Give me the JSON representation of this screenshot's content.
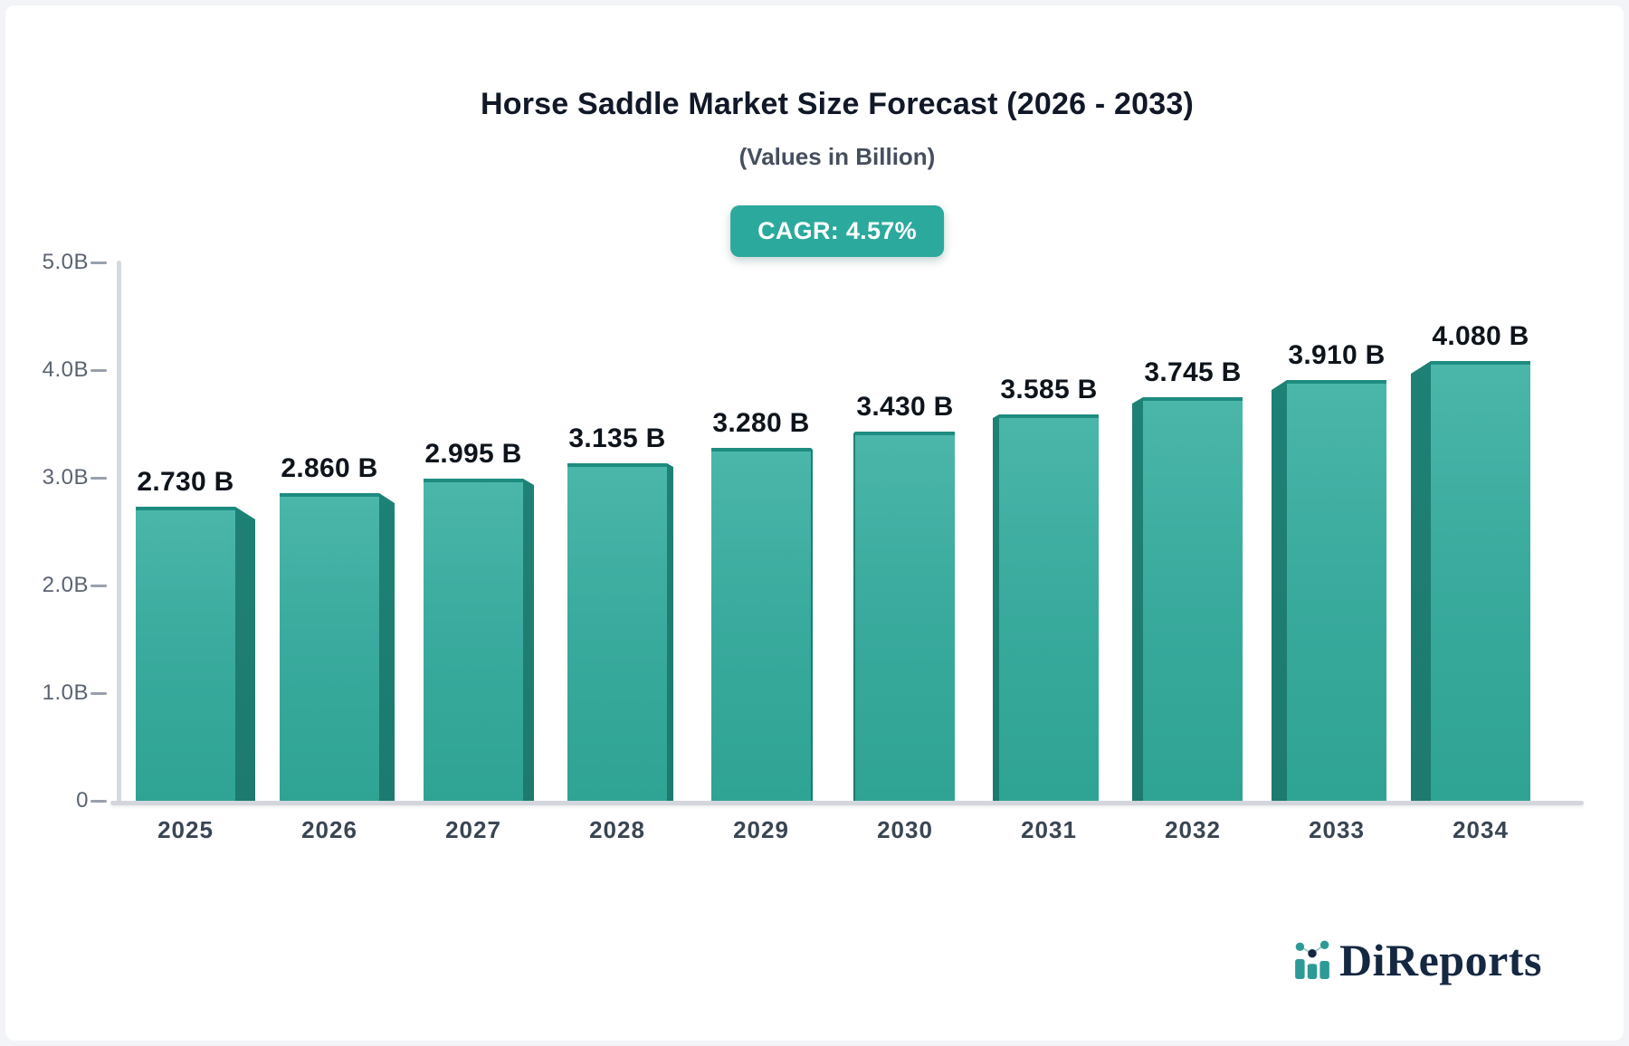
{
  "title": "Horse Saddle Market Size Forecast (2026 - 2033)",
  "subtitle": "(Values in Billion)",
  "cagr_badge": "CAGR: 4.57%",
  "logo": {
    "text": "DiReports"
  },
  "chart_data": {
    "type": "bar",
    "title": "Horse Saddle Market Size Forecast (2026 - 2033)",
    "subtitle": "(Values in Billion)",
    "categories": [
      "2025",
      "2026",
      "2027",
      "2028",
      "2029",
      "2030",
      "2031",
      "2032",
      "2033",
      "2034"
    ],
    "values": [
      2.73,
      2.86,
      2.995,
      3.135,
      3.28,
      3.43,
      3.585,
      3.745,
      3.91,
      4.08
    ],
    "value_labels": [
      "2.730 B",
      "2.860 B",
      "2.995 B",
      "3.135 B",
      "3.280 B",
      "3.430 B",
      "3.585 B",
      "3.745 B",
      "3.910 B",
      "4.080 B"
    ],
    "y_ticks": [
      {
        "value": 0,
        "label": "0"
      },
      {
        "value": 1,
        "label": "1.0B"
      },
      {
        "value": 2,
        "label": "2.0B"
      },
      {
        "value": 3,
        "label": "3.0B"
      },
      {
        "value": 4,
        "label": "4.0B"
      },
      {
        "value": 5,
        "label": "5.0B"
      }
    ],
    "ylim": [
      0,
      5
    ],
    "xlabel": "",
    "ylabel": "",
    "grid": false,
    "legend": false,
    "annotation": "CAGR: 4.57%",
    "bar_color_top": "#4bb6aa",
    "bar_color_bottom": "#2fa394",
    "bar_side_color": "#1e7f73",
    "bar_top_edge_color": "#1e8c80",
    "badge_color": "#2ba99c"
  }
}
